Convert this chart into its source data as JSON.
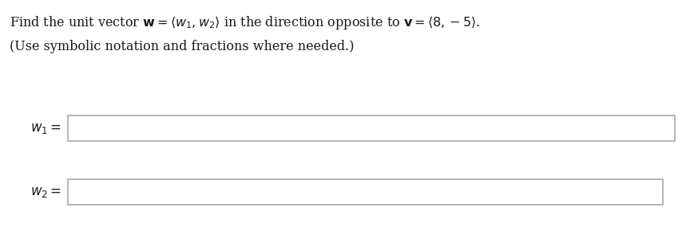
{
  "line1": "Find the unit vector $\\mathbf{w} = \\langle w_1, w_2 \\rangle$ in the direction opposite to $\\mathbf{v} = \\langle 8, -5 \\rangle$.",
  "line2": "(Use symbolic notation and fractions where needed.)",
  "label_w1": "$w_1 =$",
  "label_w2": "$w_2 =$",
  "bg_color": "#ffffff",
  "text_color": "#1a1a1a",
  "box_face_color": "#ffffff",
  "box_edge_color": "#b0b0b0",
  "font_size_text": 11.5,
  "font_size_labels": 12
}
